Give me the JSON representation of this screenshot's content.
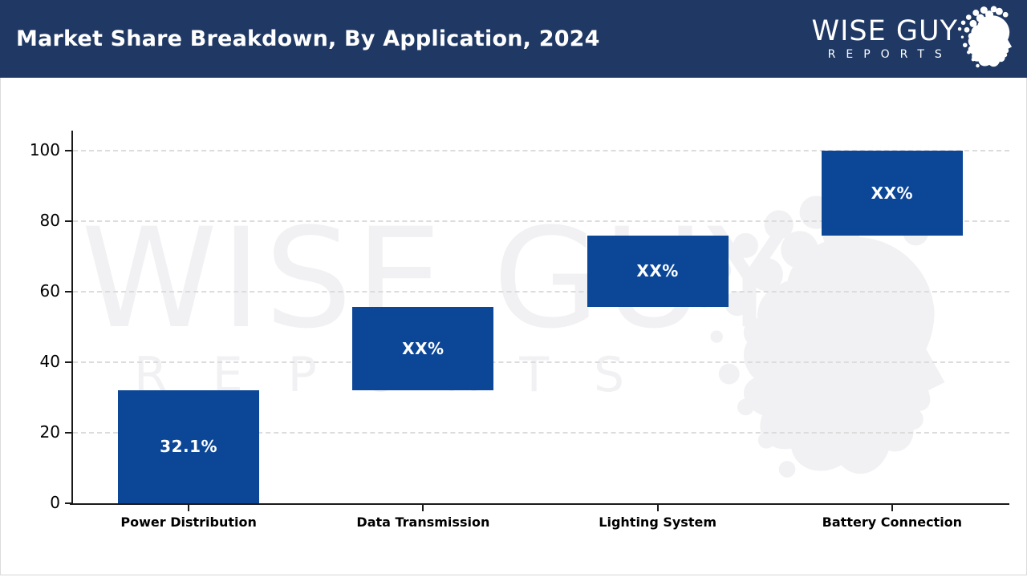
{
  "header": {
    "title": "Market Share Breakdown, By Application, 2024",
    "logo": {
      "line1": "WISE GUY",
      "line2": "REPORTS"
    },
    "bg_color": "#1f3864"
  },
  "watermark": {
    "line1": "WISE GUY",
    "line2": "REPORTS"
  },
  "chart_data": {
    "type": "bar",
    "subtype": "floating-waterfall",
    "title": "Market Share Breakdown, By Application, 2024",
    "xlabel": "",
    "ylabel": "",
    "categories": [
      "Power Distribution",
      "Data Transmission",
      "Lighting System",
      "Battery Connection"
    ],
    "segments": [
      {
        "start": 0,
        "end": 32.1,
        "label": "32.1%"
      },
      {
        "start": 32.1,
        "end": 55.7,
        "label": "XX%"
      },
      {
        "start": 55.7,
        "end": 75.9,
        "label": "XX%"
      },
      {
        "start": 75.9,
        "end": 100,
        "label": "XX%"
      }
    ],
    "ylim": [
      0,
      100
    ],
    "yticks": [
      0,
      20,
      40,
      60,
      80,
      100
    ],
    "grid": true,
    "legend": "none",
    "bar_color": "#0b4697",
    "bar_label_color": "#ffffff",
    "axis_color": "#1a1a1a",
    "grid_color": "#dcdcdc"
  }
}
